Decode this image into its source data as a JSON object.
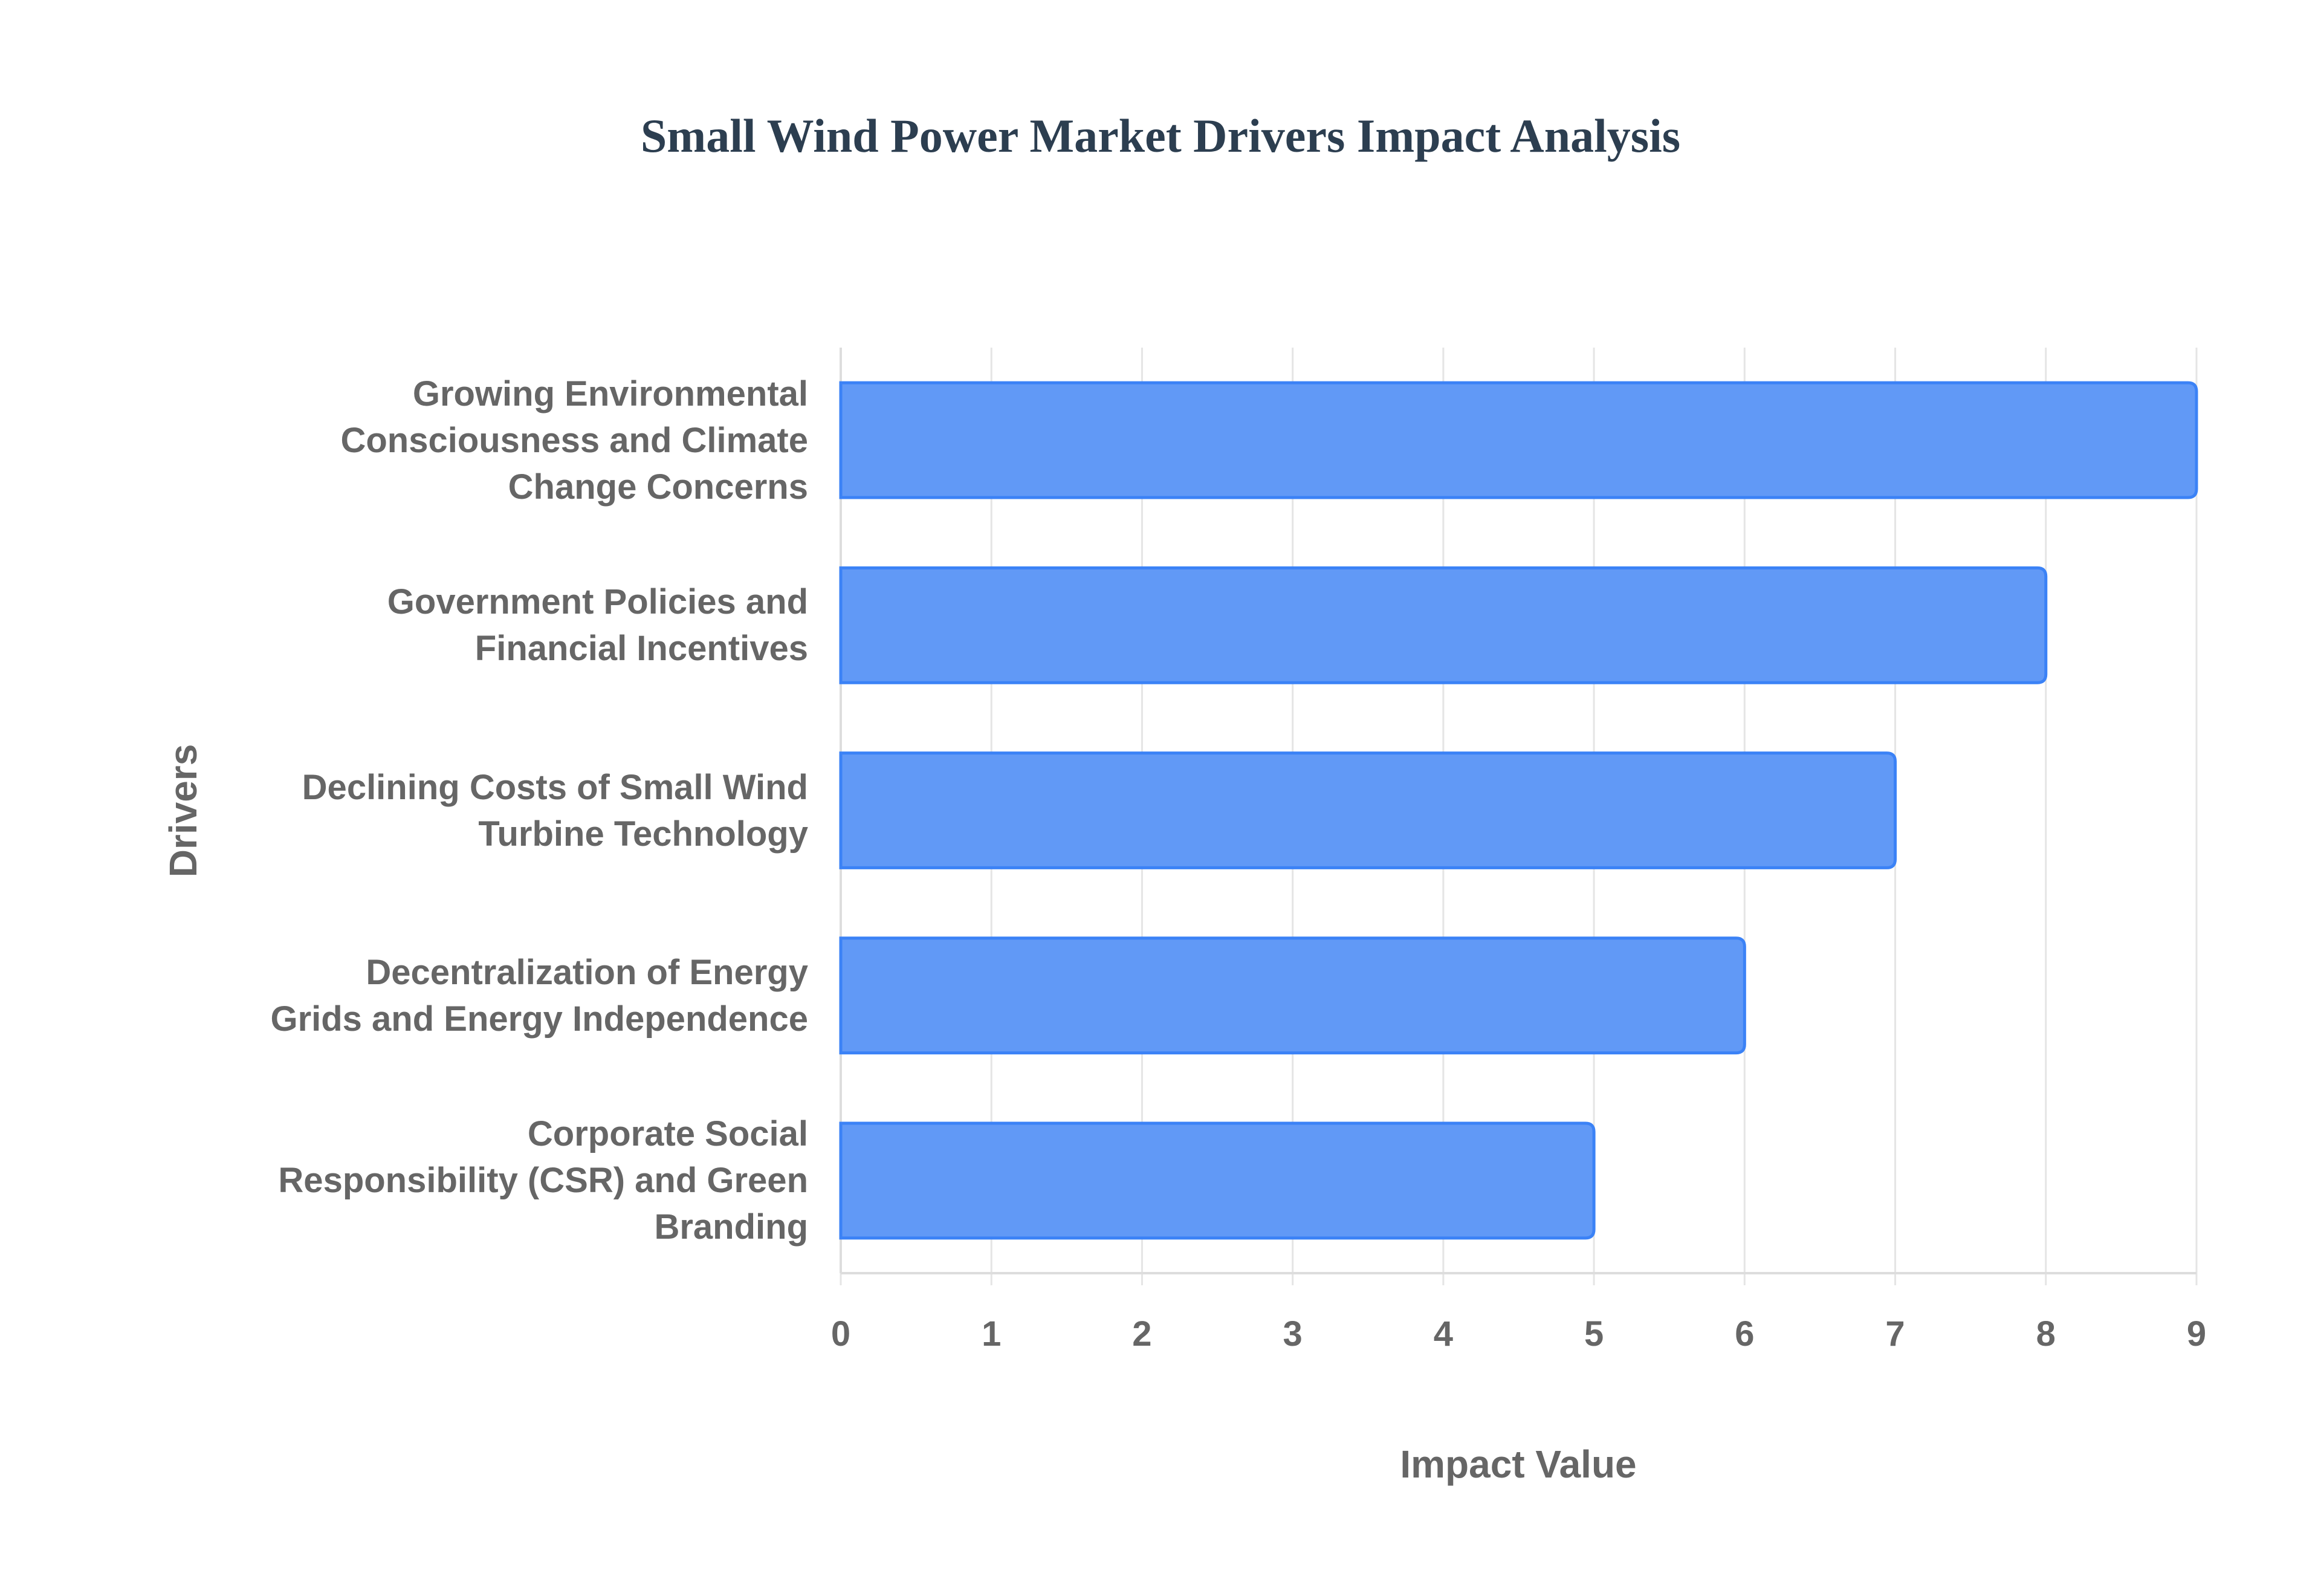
{
  "chart_data": {
    "type": "bar",
    "orientation": "horizontal",
    "title": "Small Wind Power Market Drivers Impact Analysis",
    "xlabel": "Impact Value",
    "ylabel": "Drivers",
    "xlim": [
      0,
      9
    ],
    "xticks": [
      "0",
      "1",
      "2",
      "3",
      "4",
      "5",
      "6",
      "7",
      "8",
      "9"
    ],
    "grid": true,
    "categories": [
      [
        "Growing Environmental",
        "Consciousness and Climate",
        "Change Concerns"
      ],
      [
        "Government Policies and",
        "Financial Incentives"
      ],
      [
        "Declining Costs of Small Wind",
        "Turbine Technology"
      ],
      [
        "Decentralization of Energy",
        "Grids and Energy Independence"
      ],
      [
        "Corporate Social",
        "Responsibility (CSR) and Green",
        "Branding"
      ]
    ],
    "values": [
      9,
      8,
      7,
      6,
      5
    ],
    "colors": {
      "fill": "#6199f6",
      "border": "#3b82f6",
      "grid": "#e5e5e5",
      "text": "#666666",
      "title": "#2c3e50"
    }
  }
}
